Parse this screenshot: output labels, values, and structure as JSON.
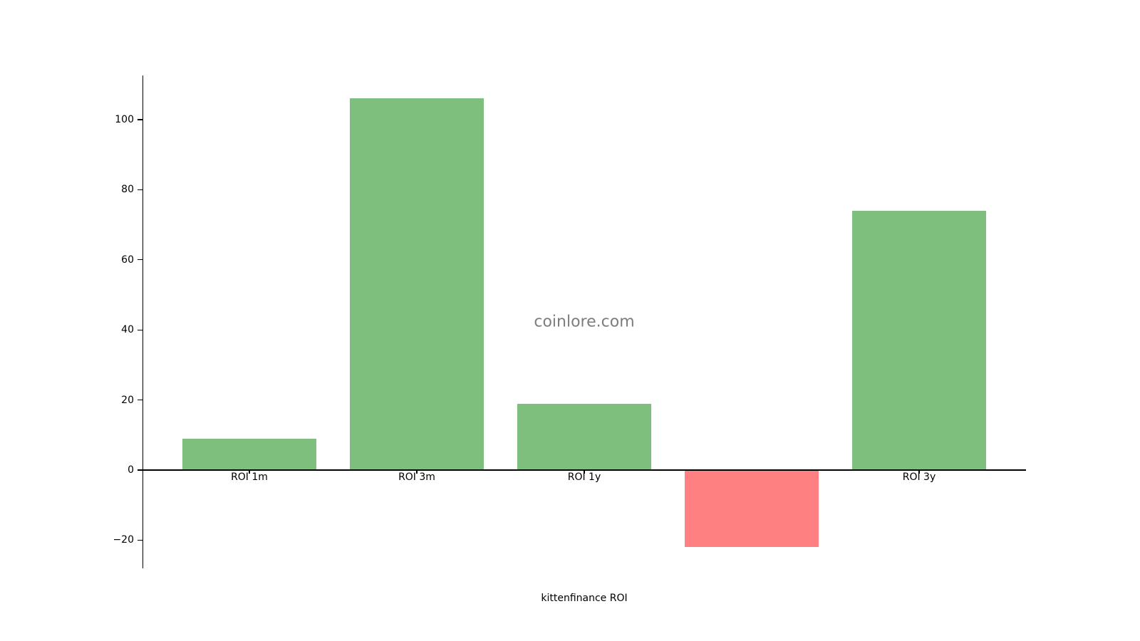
{
  "chart_data": {
    "type": "bar",
    "title": "",
    "xlabel": "kittenfinance ROI",
    "ylabel": "",
    "categories": [
      "ROI 1m",
      "ROI 3m",
      "ROI 1y",
      "",
      "ROI 3y"
    ],
    "values": [
      9,
      106,
      19,
      -22,
      74
    ],
    "bar_colors": [
      "#7ebf7e",
      "#7ebf7e",
      "#7ebf7e",
      "#ff8080",
      "#7ebf7e"
    ],
    "positive_color": "#7ebf7e",
    "negative_color": "#ff8080",
    "axis_color": "#000000",
    "y_ticks": [
      100,
      80,
      60,
      40,
      20,
      0,
      -20
    ],
    "ylim": [
      -28.4,
      112.4
    ],
    "grid": false,
    "legend": false
  },
  "watermark": {
    "text": "coinlore.com",
    "color": "#7d7d7d"
  }
}
